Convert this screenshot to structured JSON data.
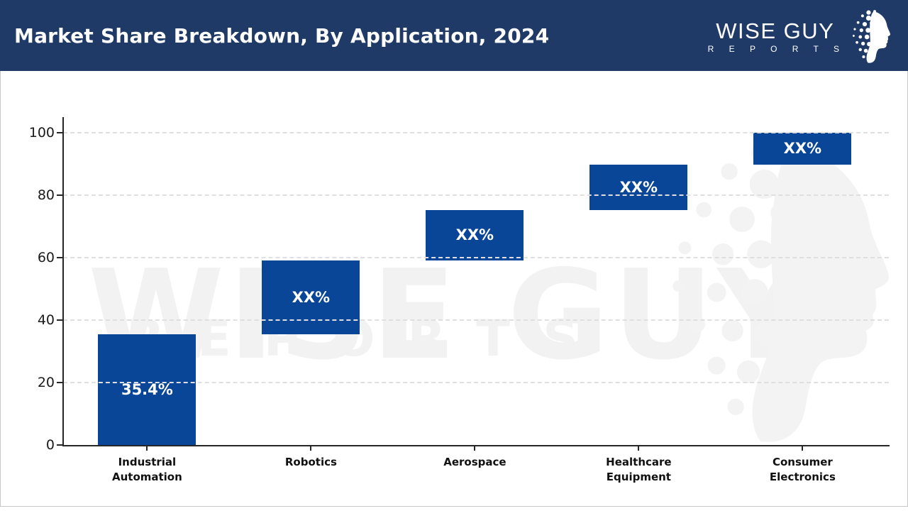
{
  "header": {
    "title": "Market Share Breakdown, By Application, 2024",
    "logo": {
      "line1": "WISE GUY",
      "line2": "R E P O R T S"
    }
  },
  "watermark": {
    "line1": "WISE GUY",
    "line2": "REPORTS"
  },
  "colors": {
    "header_bg": "#203a68",
    "bar": "#0a4697",
    "grid": "#dfdfdf",
    "axis": "#262626",
    "bar_label": "#ffffff",
    "watermark": "#f2f2f2"
  },
  "icons": {
    "logo_face": "dotted-head-profile-icon"
  },
  "chart_data": {
    "type": "bar",
    "subtype": "waterfall",
    "title": "Market Share Breakdown, By Application, 2024",
    "xlabel": "",
    "ylabel": "",
    "ylim": [
      0,
      100
    ],
    "yticks": [
      0,
      20,
      40,
      60,
      80,
      100
    ],
    "grid": "horizontal-dashed",
    "legend": "none",
    "categories": [
      "Industrial Automation",
      "Robotics",
      "Aerospace",
      "Healthcare Equipment",
      "Consumer Electronics"
    ],
    "segments": [
      {
        "category_lines": [
          "Industrial",
          "Automation"
        ],
        "start": 0,
        "end": 35.4,
        "label": "35.4%"
      },
      {
        "category_lines": [
          "Robotics"
        ],
        "start": 35.4,
        "end": 59.2,
        "label": "XX%"
      },
      {
        "category_lines": [
          "Aerospace"
        ],
        "start": 59.2,
        "end": 75.2,
        "label": "XX%"
      },
      {
        "category_lines": [
          "Healthcare",
          "Equipment"
        ],
        "start": 75.2,
        "end": 89.8,
        "label": "XX%"
      },
      {
        "category_lines": [
          "Consumer",
          "Electronics"
        ],
        "start": 89.8,
        "end": 100,
        "label": "XX%"
      }
    ]
  }
}
